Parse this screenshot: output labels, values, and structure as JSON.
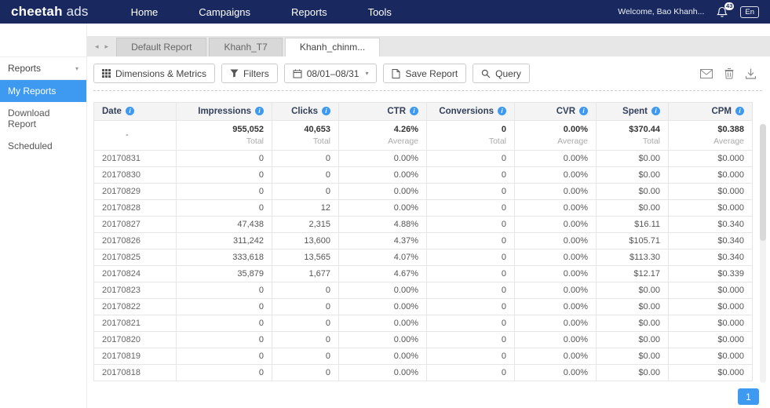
{
  "navbar": {
    "logo_bold": "cheetah",
    "logo_light": " ads",
    "items": [
      {
        "label": "Home"
      },
      {
        "label": "Campaigns"
      },
      {
        "label": "Reports"
      },
      {
        "label": "Tools"
      }
    ],
    "welcome": "Welcome,",
    "username": "Bao Khanh...",
    "notification_count": "43",
    "language": "En"
  },
  "sidebar": {
    "section": "Reports",
    "items": [
      {
        "label": "My Reports",
        "active": true
      },
      {
        "label": "Download Report",
        "active": false
      },
      {
        "label": "Scheduled",
        "active": false
      }
    ]
  },
  "tabs": [
    {
      "label": "Default Report",
      "active": false
    },
    {
      "label": "Khanh_T7",
      "active": false
    },
    {
      "label": "Khanh_chinm...",
      "active": true
    }
  ],
  "toolbar": {
    "dimensions_metrics": "Dimensions & Metrics",
    "filters": "Filters",
    "date_range": "08/01–08/31",
    "save_report": "Save Report",
    "query": "Query"
  },
  "icons": {
    "chevron_down": "▾",
    "tab_back": "◂",
    "tab_forward": "▸"
  },
  "table": {
    "columns": [
      "Date",
      "Impressions",
      "Clicks",
      "CTR",
      "Conversions",
      "CVR",
      "Spent",
      "CPM"
    ],
    "total_row": {
      "date": "-",
      "values": [
        "955,052",
        "40,653",
        "4.26%",
        "0",
        "0.00%",
        "$370.44",
        "$0.388"
      ],
      "sublabels": [
        "Total",
        "Total",
        "Average",
        "Total",
        "Average",
        "Total",
        "Average"
      ]
    },
    "rows": [
      {
        "date": "20170831",
        "values": [
          "0",
          "0",
          "0.00%",
          "0",
          "0.00%",
          "$0.00",
          "$0.000"
        ]
      },
      {
        "date": "20170830",
        "values": [
          "0",
          "0",
          "0.00%",
          "0",
          "0.00%",
          "$0.00",
          "$0.000"
        ]
      },
      {
        "date": "20170829",
        "values": [
          "0",
          "0",
          "0.00%",
          "0",
          "0.00%",
          "$0.00",
          "$0.000"
        ]
      },
      {
        "date": "20170828",
        "values": [
          "0",
          "12",
          "0.00%",
          "0",
          "0.00%",
          "$0.00",
          "$0.000"
        ]
      },
      {
        "date": "20170827",
        "values": [
          "47,438",
          "2,315",
          "4.88%",
          "0",
          "0.00%",
          "$16.11",
          "$0.340"
        ]
      },
      {
        "date": "20170826",
        "values": [
          "311,242",
          "13,600",
          "4.37%",
          "0",
          "0.00%",
          "$105.71",
          "$0.340"
        ]
      },
      {
        "date": "20170825",
        "values": [
          "333,618",
          "13,565",
          "4.07%",
          "0",
          "0.00%",
          "$113.30",
          "$0.340"
        ]
      },
      {
        "date": "20170824",
        "values": [
          "35,879",
          "1,677",
          "4.67%",
          "0",
          "0.00%",
          "$12.17",
          "$0.339"
        ]
      },
      {
        "date": "20170823",
        "values": [
          "0",
          "0",
          "0.00%",
          "0",
          "0.00%",
          "$0.00",
          "$0.000"
        ]
      },
      {
        "date": "20170822",
        "values": [
          "0",
          "0",
          "0.00%",
          "0",
          "0.00%",
          "$0.00",
          "$0.000"
        ]
      },
      {
        "date": "20170821",
        "values": [
          "0",
          "0",
          "0.00%",
          "0",
          "0.00%",
          "$0.00",
          "$0.000"
        ]
      },
      {
        "date": "20170820",
        "values": [
          "0",
          "0",
          "0.00%",
          "0",
          "0.00%",
          "$0.00",
          "$0.000"
        ]
      },
      {
        "date": "20170819",
        "values": [
          "0",
          "0",
          "0.00%",
          "0",
          "0.00%",
          "$0.00",
          "$0.000"
        ]
      },
      {
        "date": "20170818",
        "values": [
          "0",
          "0",
          "0.00%",
          "0",
          "0.00%",
          "$0.00",
          "$0.000"
        ]
      }
    ]
  },
  "pagination": {
    "current": "1"
  }
}
